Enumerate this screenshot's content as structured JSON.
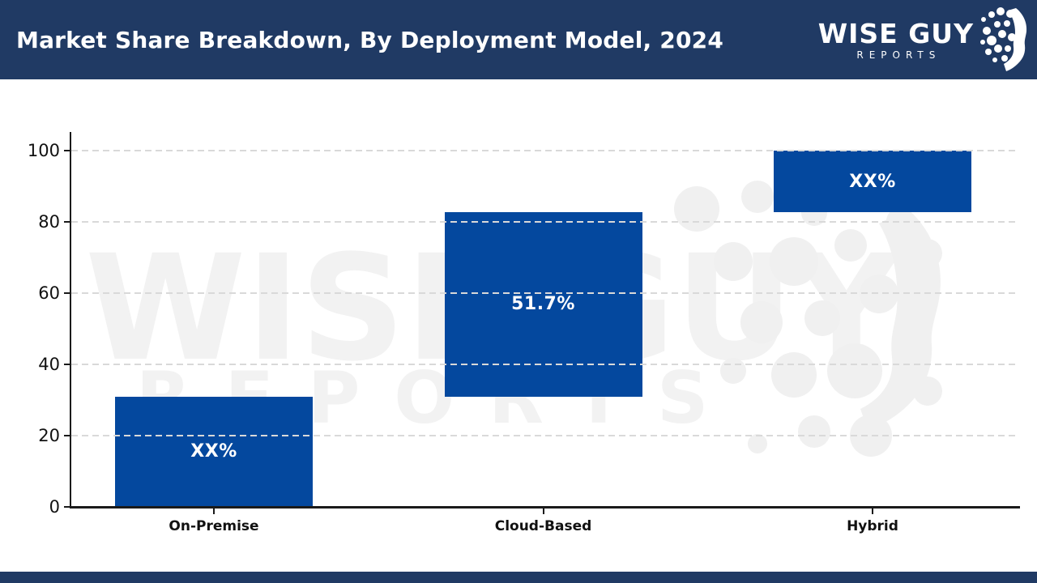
{
  "header": {
    "title": "Market Share Breakdown, By Deployment Model, 2024",
    "logo": {
      "name": "WISE GUY",
      "tagline": "REPORTS",
      "icon": "dotted-head-profile-icon"
    }
  },
  "watermark": {
    "name": "WISE GUY",
    "tagline": "REPORTS",
    "icon": "dotted-head-profile-icon"
  },
  "colors": {
    "header_bg": "#203a64",
    "footer_bg": "#203a64",
    "bar": "#04489e",
    "watermark": "#f2f2f2",
    "grid": "#d9d9d9",
    "axis": "#1a1a1a",
    "bar_label": "#ffffff"
  },
  "chart_data": {
    "type": "bar",
    "variant": "waterfall (stacked cumulative market share)",
    "title": "Market Share Breakdown, By Deployment Model, 2024",
    "categories": [
      "On-Premise",
      "Cloud-Based",
      "Hybrid"
    ],
    "bars": [
      {
        "category": "On-Premise",
        "start": 0,
        "end": 31,
        "segment_value": 31,
        "value_shown": "XX%"
      },
      {
        "category": "Cloud-Based",
        "start": 31,
        "end": 82.7,
        "segment_value": 51.7,
        "value_shown": "51.7%"
      },
      {
        "category": "Hybrid",
        "start": 82.7,
        "end": 100,
        "segment_value": 17.3,
        "value_shown": "XX%"
      }
    ],
    "values_pct": [
      31,
      51.7,
      17.3
    ],
    "xlabel": "",
    "ylabel": "",
    "ylim": [
      0,
      100
    ],
    "yticks": [
      0,
      20,
      40,
      60,
      80,
      100
    ],
    "grid": {
      "horizontal": true,
      "style": "dashed",
      "drawn_above_bars": true
    },
    "legend": null,
    "bar_color": "#04489e"
  }
}
